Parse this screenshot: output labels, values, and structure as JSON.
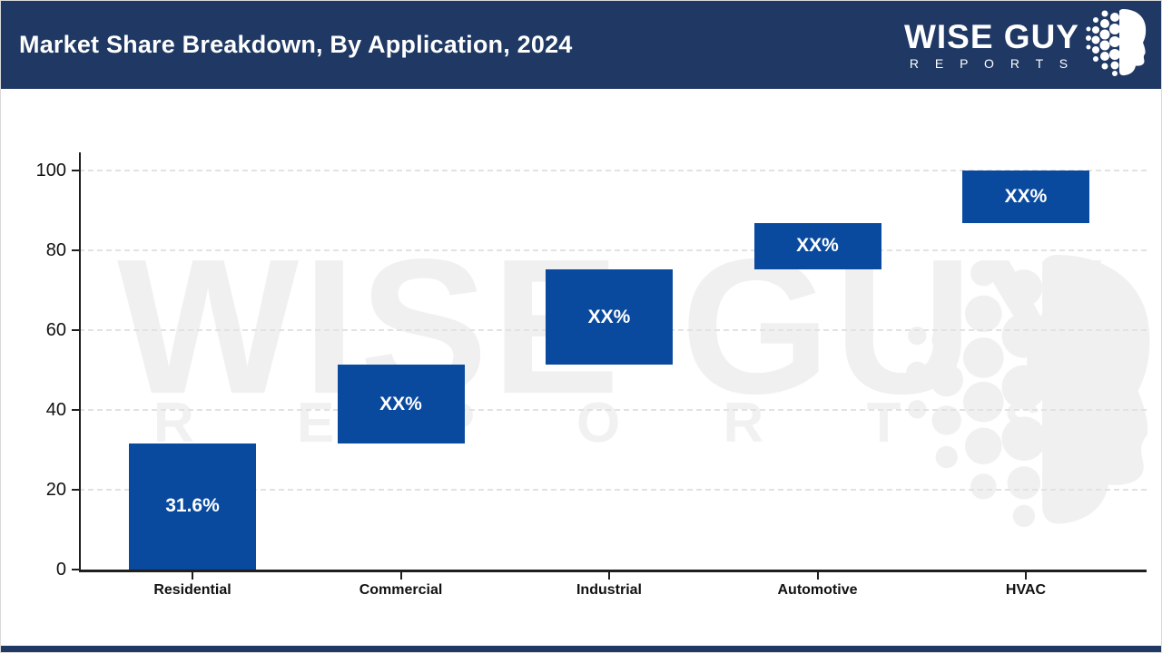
{
  "header": {
    "title": "Market Share Breakdown, By Application, 2024",
    "logo": {
      "name": "WISE GUY",
      "sub": "R E P O R T S"
    }
  },
  "watermark": {
    "name": "WISE GUY",
    "sub": "R E P O R T S"
  },
  "colors": {
    "header_bg": "#1f3864",
    "footer_bg": "#1f3864",
    "bar": "#0a4a9e",
    "bar_label": "#ffffff",
    "gridline": "#e2e2e2",
    "axis": "#1f1f1f",
    "watermark": "#f0f0f0"
  },
  "chart_data": {
    "type": "bar",
    "subtype": "floating_waterfall_segments",
    "title": "Market Share Breakdown, By Application, 2024",
    "categories": [
      "Residential",
      "Commercial",
      "Industrial",
      "Automotive",
      "HVAC"
    ],
    "series": [
      {
        "name": "Market Share (%)",
        "segments": [
          {
            "category": "Residential",
            "start": 0,
            "end": 31.6,
            "label": "31.6%"
          },
          {
            "category": "Commercial",
            "start": 31.6,
            "end": 51.3,
            "label": "XX%"
          },
          {
            "category": "Industrial",
            "start": 51.3,
            "end": 75.2,
            "label": "XX%"
          },
          {
            "category": "Automotive",
            "start": 75.2,
            "end": 86.9,
            "label": "XX%"
          },
          {
            "category": "HVAC",
            "start": 86.9,
            "end": 100,
            "label": "XX%"
          }
        ]
      }
    ],
    "xlabel": "",
    "ylabel": "",
    "ylim": [
      0,
      100
    ],
    "yticks": [
      0,
      20,
      40,
      60,
      80,
      100
    ],
    "grid": "horizontal_dashed",
    "legend": "none"
  }
}
